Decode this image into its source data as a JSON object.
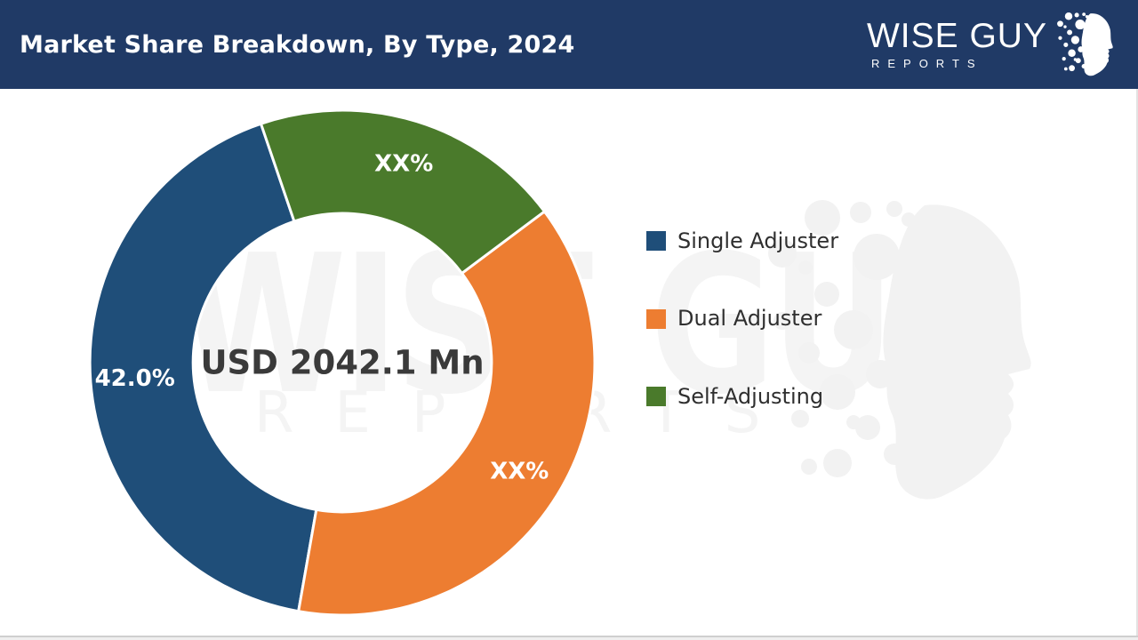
{
  "header": {
    "title": "Market Share Breakdown, By Type, 2024",
    "background_color": "#203A66",
    "logo": {
      "name": "WISE GUY",
      "reports": "REPORTS"
    }
  },
  "watermark": {
    "name": "WISE GUY",
    "reports": "REPORTS"
  },
  "chart_data": {
    "type": "pie",
    "subtype": "donut",
    "title": "Market Share Breakdown, By Type, 2024",
    "center_label": "USD 2042.1 Mn",
    "donut_hole_ratio": 0.59,
    "start_angle_deg": 108.8,
    "direction": "counterclockwise",
    "legend_position": "right",
    "series": [
      {
        "name": "Single Adjuster",
        "value_pct": 42.0,
        "label": "42.0%",
        "color": "#1F4E79"
      },
      {
        "name": "Dual Adjuster",
        "value_pct": 38.0,
        "label": "XX%",
        "color": "#ED7D31"
      },
      {
        "name": "Self-Adjusting",
        "value_pct": 20.0,
        "label": "XX%",
        "color": "#4A7A2B"
      }
    ]
  }
}
